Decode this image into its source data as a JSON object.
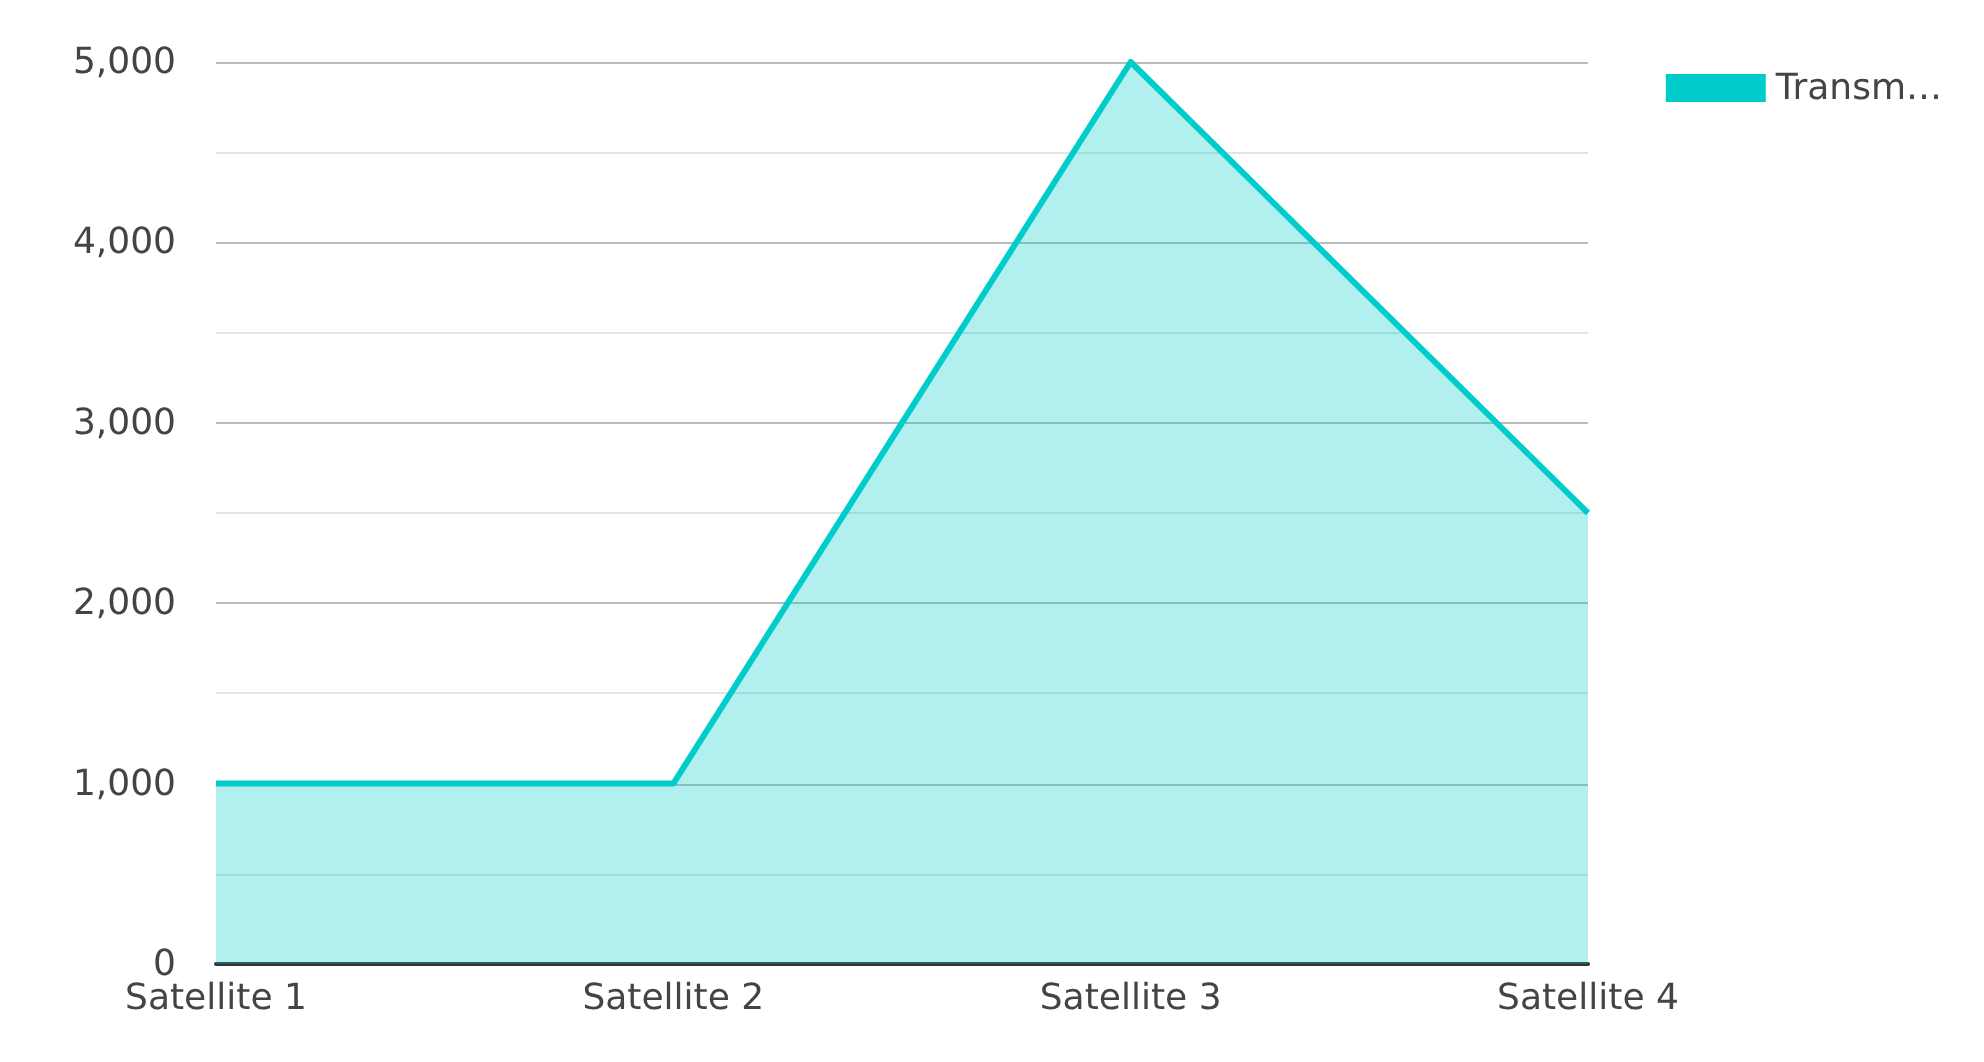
{
  "chart_data": {
    "type": "area",
    "categories": [
      "Satellite 1",
      "Satellite 2",
      "Satellite 3",
      "Satellite 4"
    ],
    "series": [
      {
        "name": "Transm…",
        "color": "#00cccc",
        "values": [
          1000,
          1000,
          5000,
          2500
        ]
      }
    ],
    "ylim": [
      0,
      5000
    ],
    "yticks": [
      {
        "value": 0,
        "label": "0"
      },
      {
        "value": 500,
        "label": null
      },
      {
        "value": 1000,
        "label": "1,000"
      },
      {
        "value": 1500,
        "label": null
      },
      {
        "value": 2000,
        "label": "2,000"
      },
      {
        "value": 2500,
        "label": null
      },
      {
        "value": 3000,
        "label": "3,000"
      },
      {
        "value": 3500,
        "label": null
      },
      {
        "value": 4000,
        "label": "4,000"
      },
      {
        "value": 4500,
        "label": null
      },
      {
        "value": 5000,
        "label": "5,000"
      }
    ],
    "grid": "y",
    "legend": "top right"
  }
}
